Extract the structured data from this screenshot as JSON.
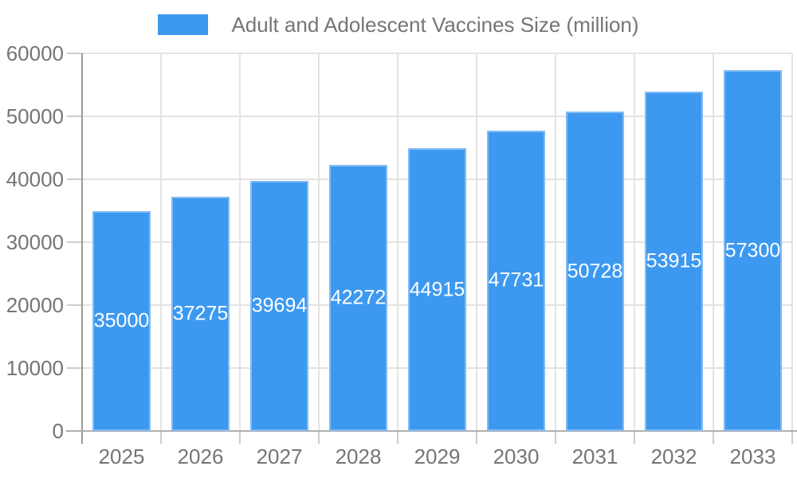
{
  "legend": {
    "label": "Adult and Adolescent Vaccines Size (million)"
  },
  "chart_data": {
    "type": "bar",
    "title": "Adult and Adolescent Vaccines Size (million)",
    "series": [
      {
        "name": "Adult and Adolescent Vaccines Size (million)",
        "values": [
          35000,
          37275,
          39694,
          42272,
          44915,
          47731,
          50728,
          53915,
          57300
        ]
      }
    ],
    "categories": [
      "2025",
      "2026",
      "2027",
      "2028",
      "2029",
      "2030",
      "2031",
      "2032",
      "2033"
    ],
    "values": [
      35000,
      37275,
      39694,
      42272,
      44915,
      47731,
      50728,
      53915,
      57300
    ],
    "bar_labels": [
      "35000",
      "37275",
      "39694",
      "42272",
      "44915",
      "47731",
      "50728",
      "53915",
      "57300"
    ],
    "xlabel": "",
    "ylabel": "",
    "ylim": [
      0,
      60000
    ],
    "yticks": [
      0,
      10000,
      20000,
      30000,
      40000,
      50000,
      60000
    ],
    "ytick_labels": [
      "0",
      "10000",
      "20000",
      "30000",
      "40000",
      "50000",
      "60000"
    ],
    "grid": true,
    "legend_position": "top-center",
    "colors": {
      "bar_fill": "#3d99f0",
      "bar_border": "#82bbf4",
      "grid_line": "#e3e3e3",
      "axis_line_y": "#999999",
      "axis_line_x": "#b0b0b0",
      "tick_mark": "#cccccc",
      "axis_text": "#757575",
      "bar_value_text": "#ffffff",
      "background": "#ffffff"
    }
  }
}
